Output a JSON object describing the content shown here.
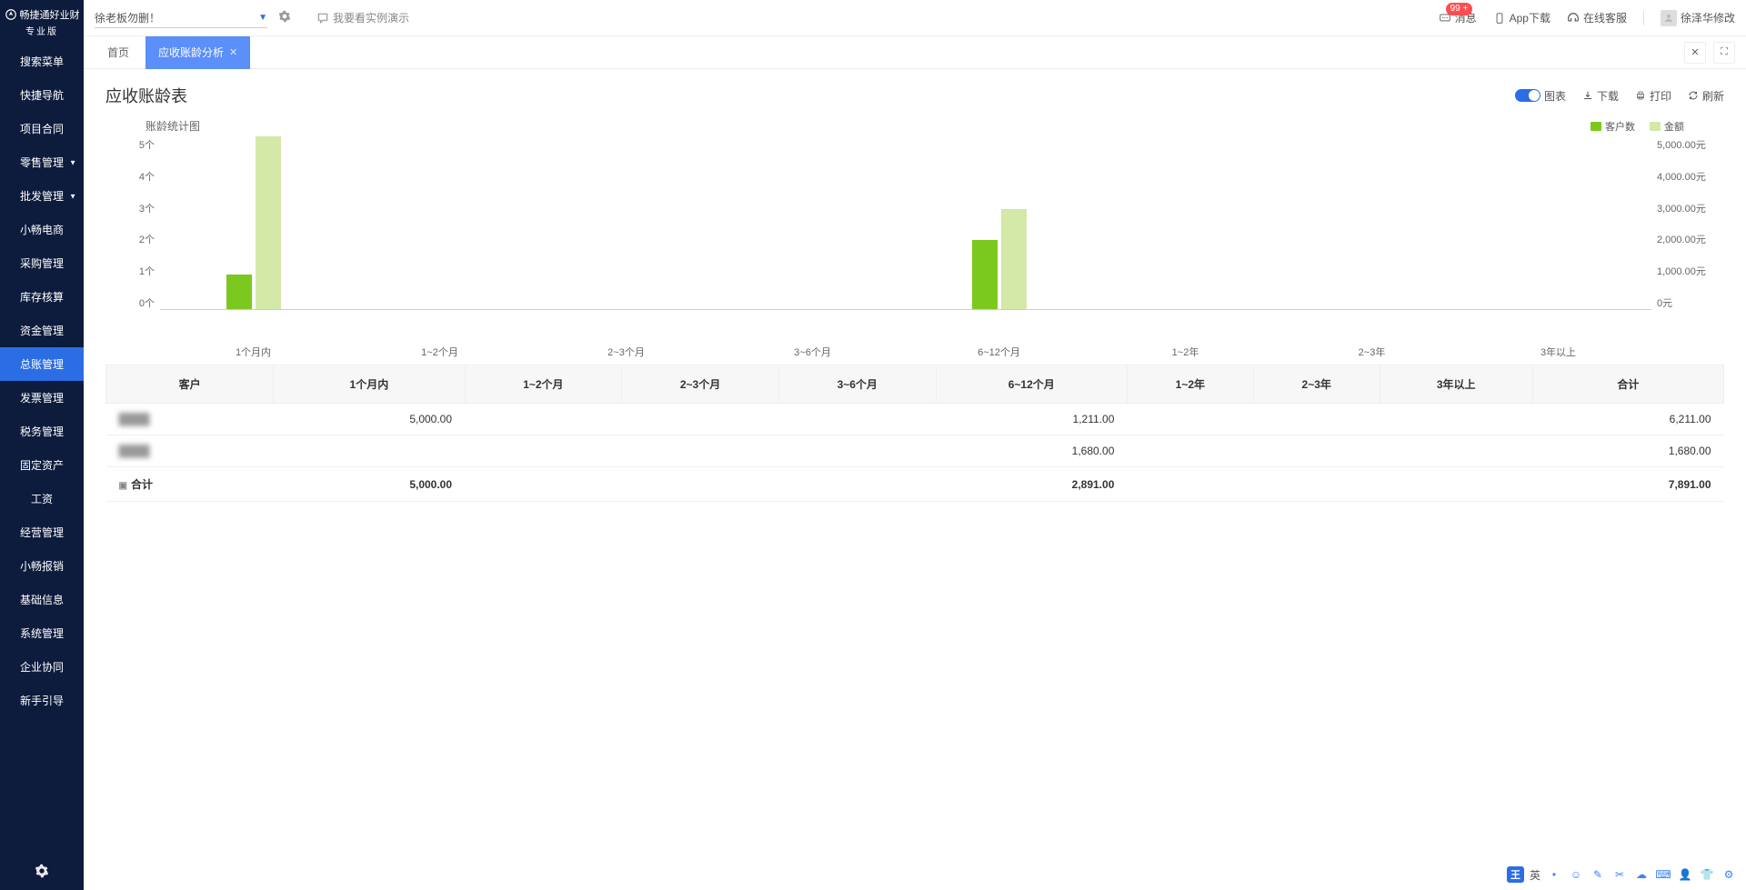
{
  "app": {
    "logo_text": "畅捷通好业财",
    "logo_sub": "专业版"
  },
  "sidebar": {
    "items": [
      {
        "label": "搜索菜单",
        "has_sub": false
      },
      {
        "label": "快捷导航",
        "has_sub": false
      },
      {
        "label": "项目合同",
        "has_sub": false
      },
      {
        "label": "零售管理",
        "has_sub": true
      },
      {
        "label": "批发管理",
        "has_sub": true
      },
      {
        "label": "小畅电商",
        "has_sub": false
      },
      {
        "label": "采购管理",
        "has_sub": false
      },
      {
        "label": "库存核算",
        "has_sub": false
      },
      {
        "label": "资金管理",
        "has_sub": false
      },
      {
        "label": "总账管理",
        "has_sub": false,
        "active": true
      },
      {
        "label": "发票管理",
        "has_sub": false
      },
      {
        "label": "税务管理",
        "has_sub": false
      },
      {
        "label": "固定资产",
        "has_sub": false
      },
      {
        "label": "工资",
        "has_sub": false
      },
      {
        "label": "经营管理",
        "has_sub": false
      },
      {
        "label": "小畅报销",
        "has_sub": false
      },
      {
        "label": "基础信息",
        "has_sub": false
      },
      {
        "label": "系统管理",
        "has_sub": false
      },
      {
        "label": "企业协同",
        "has_sub": false
      },
      {
        "label": "新手引导",
        "has_sub": false
      }
    ]
  },
  "topbar": {
    "org": "徐老板勿删！",
    "demo": "我要看实例演示",
    "msg": "消息",
    "msg_badge": "99 +",
    "download": "App下载",
    "service": "在线客服",
    "user": "徐泽华修改"
  },
  "tabs": {
    "home": "首页",
    "active": "应收账龄分析"
  },
  "page": {
    "title": "应收账龄表",
    "toggle_label": "图表",
    "download": "下载",
    "print": "打印",
    "refresh": "刷新"
  },
  "chart": {
    "title": "账龄统计图",
    "legend_customers": "客户数",
    "legend_amount": "金额",
    "colors": {
      "customers": "#7bc91e",
      "amount": "#d4e8a8"
    },
    "categories": [
      "1个月内",
      "1~2个月",
      "2~3个月",
      "3~6个月",
      "6~12个月",
      "1~2年",
      "2~3年",
      "3年以上"
    ],
    "y_left_ticks": [
      "5个",
      "4个",
      "3个",
      "2个",
      "1个",
      "0个"
    ],
    "y_left_max": 5,
    "y_right_ticks": [
      "5,000.00元",
      "4,000.00元",
      "3,000.00元",
      "2,000.00元",
      "1,000.00元",
      "0元"
    ],
    "y_right_max": 5000,
    "series": [
      {
        "customers": 1,
        "amount": 5000
      },
      {
        "customers": 0,
        "amount": 0
      },
      {
        "customers": 0,
        "amount": 0
      },
      {
        "customers": 0,
        "amount": 0
      },
      {
        "customers": 2,
        "amount": 2891
      },
      {
        "customers": 0,
        "amount": 0
      },
      {
        "customers": 0,
        "amount": 0
      },
      {
        "customers": 0,
        "amount": 0
      }
    ]
  },
  "table": {
    "columns": [
      "客户",
      "1个月内",
      "1~2个月",
      "2~3个月",
      "3~6个月",
      "6~12个月",
      "1~2年",
      "2~3年",
      "3年以上",
      "合计"
    ],
    "rows": [
      {
        "customer": "████",
        "blur": true,
        "cells": [
          "5,000.00",
          "",
          "",
          "",
          "1,211.00",
          "",
          "",
          "",
          "6,211.00"
        ]
      },
      {
        "customer": "████",
        "blur": true,
        "cells": [
          "",
          "",
          "",
          "",
          "1,680.00",
          "",
          "",
          "",
          "1,680.00"
        ]
      }
    ],
    "total_label": "合计",
    "total": [
      "5,000.00",
      "",
      "",
      "",
      "2,891.00",
      "",
      "",
      "",
      "7,891.00"
    ]
  },
  "bottom": {
    "badge": "王",
    "lang": "英"
  }
}
